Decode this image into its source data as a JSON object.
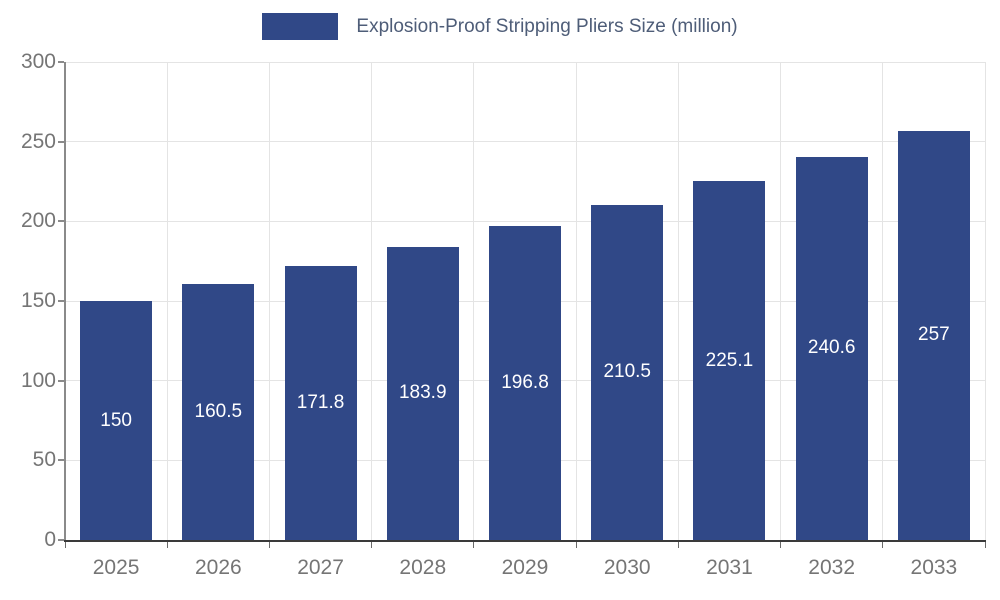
{
  "legend": {
    "label": "Explosion-Proof Stripping Pliers Size (million)"
  },
  "chart_data": {
    "type": "bar",
    "title": "Explosion-Proof Stripping Pliers Size (million)",
    "categories": [
      "2025",
      "2026",
      "2027",
      "2028",
      "2029",
      "2030",
      "2031",
      "2032",
      "2033"
    ],
    "values": [
      150,
      160.5,
      171.8,
      183.9,
      196.8,
      210.5,
      225.1,
      240.6,
      257
    ],
    "xlabel": "",
    "ylabel": "",
    "ylim": [
      0,
      300
    ],
    "yticks": [
      0,
      50,
      100,
      150,
      200,
      250,
      300
    ],
    "grid": true,
    "legend_position": "top",
    "bar_color": "#304887",
    "value_label_color": "#ffffff",
    "title_color": "#4e5d78",
    "axis_label_color": "#757575"
  }
}
